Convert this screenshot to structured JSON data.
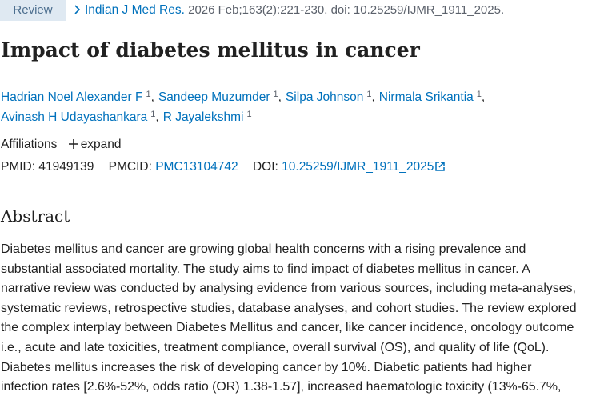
{
  "badge": "Review",
  "citation": {
    "journal": "Indian J Med Res.",
    "details": "2026 Feb;163(2):221-230. doi: 10.25259/IJMR_1911_2025."
  },
  "title": "Impact of diabetes mellitus in cancer",
  "author_lines": [
    [
      {
        "name": "Hadrian Noel Alexander F",
        "affiliation": "1",
        "sep": ","
      },
      {
        "name": "Sandeep Muzumder",
        "affiliation": "1",
        "sep": ","
      },
      {
        "name": "Silpa Johnson",
        "affiliation": "1",
        "sep": ","
      },
      {
        "name": "Nirmala Srikantia",
        "affiliation": "1",
        "sep": ","
      }
    ],
    [
      {
        "name": "Avinash H Udayashankara",
        "affiliation": "1",
        "sep": ","
      },
      {
        "name": "R Jayalekshmi",
        "affiliation": "1"
      }
    ]
  ],
  "affiliations": {
    "label": "Affiliations",
    "expand": "expand"
  },
  "ids": {
    "pmid_label": "PMID:",
    "pmid": "41949139",
    "pmcid_label": "PMCID:",
    "pmcid": "PMC13104742",
    "doi_label": "DOI:",
    "doi": "10.25259/IJMR_1911_2025"
  },
  "abstract": {
    "heading": "Abstract",
    "lines": [
      "Diabetes mellitus and cancer are growing global health concerns with a rising prevalence and",
      "substantial associated mortality. The study aims to find impact of diabetes mellitus in cancer. A",
      "narrative review was conducted by analysing evidence from various sources, including meta-analyses,",
      "systematic reviews, retrospective studies, database analyses, and cohort studies. The review explored",
      "the complex interplay between Diabetes Mellitus and cancer, like cancer incidence, oncology outcome",
      "i.e., acute and late toxicities, treatment compliance, overall survival (OS), and quality of life (QoL).",
      "Diabetes mellitus increases the risk of developing cancer by 10%. Diabetic patients had higher",
      "infection rates [2.6%-52%, odds ratio (OR) 1.38-1.57], increased haematologic toxicity (13%-65.7%,"
    ]
  }
}
